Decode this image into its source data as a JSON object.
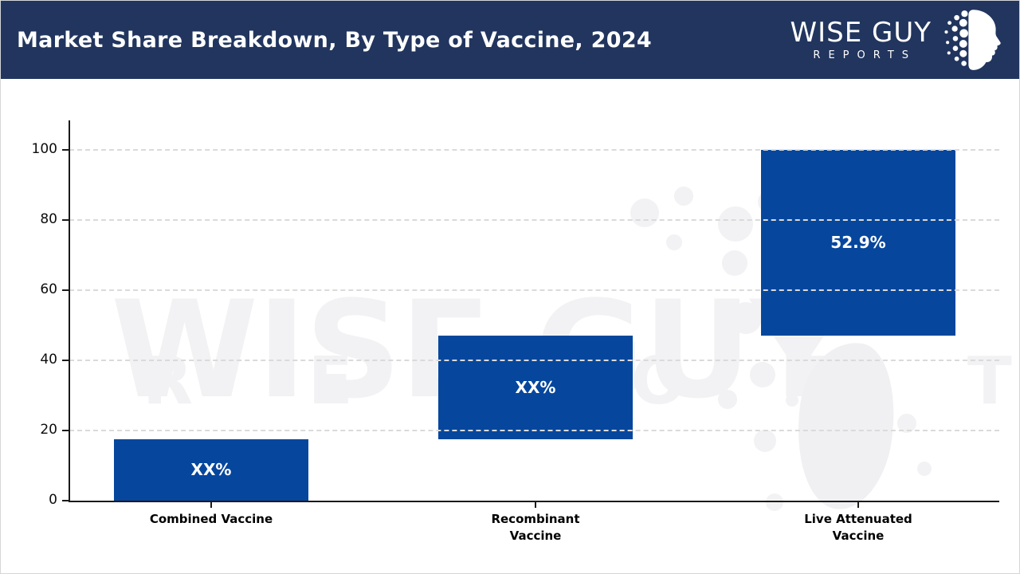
{
  "header": {
    "title": "Market Share Breakdown, By Type of Vaccine, 2024",
    "logo": {
      "line1": "WISE GUY",
      "line2": "REPORTS"
    }
  },
  "watermark": {
    "line1": "WISE GUY",
    "line2": "REPORTS"
  },
  "colors": {
    "header_bg": "#21355e",
    "bar_blue": "#06479d",
    "grid_gray": "#dadada",
    "axis_black": "#1a1a1a",
    "watermark_gray": "#f2f2f4",
    "label_white": "#ffffff"
  },
  "chart_data": {
    "type": "bar",
    "subtype": "stacked-waterfall-segments",
    "title": "Market Share Breakdown, By Type of Vaccine, 2024",
    "categories": [
      "Combined Vaccine",
      "Recombinant Vaccine",
      "Live Attenuated Vaccine"
    ],
    "category_lines": [
      [
        "Combined Vaccine"
      ],
      [
        "Recombinant",
        "Vaccine"
      ],
      [
        "Live Attenuated",
        "Vaccine"
      ]
    ],
    "segments": [
      {
        "category": "Combined Vaccine",
        "start": 0,
        "end": 17.6,
        "value": 17.6,
        "label": "XX%"
      },
      {
        "category": "Recombinant Vaccine",
        "start": 17.6,
        "end": 47.1,
        "value": 29.5,
        "label": "XX%"
      },
      {
        "category": "Live Attenuated Vaccine",
        "start": 47.1,
        "end": 100,
        "value": 52.9,
        "label": "52.9%"
      }
    ],
    "xlabel": "",
    "ylabel": "",
    "ylim": [
      0,
      100
    ],
    "yticks": [
      0,
      20,
      40,
      60,
      80,
      100
    ],
    "grid": "horizontal-dashed-over-bars",
    "legend": "none",
    "bar_color": "#06479d"
  }
}
